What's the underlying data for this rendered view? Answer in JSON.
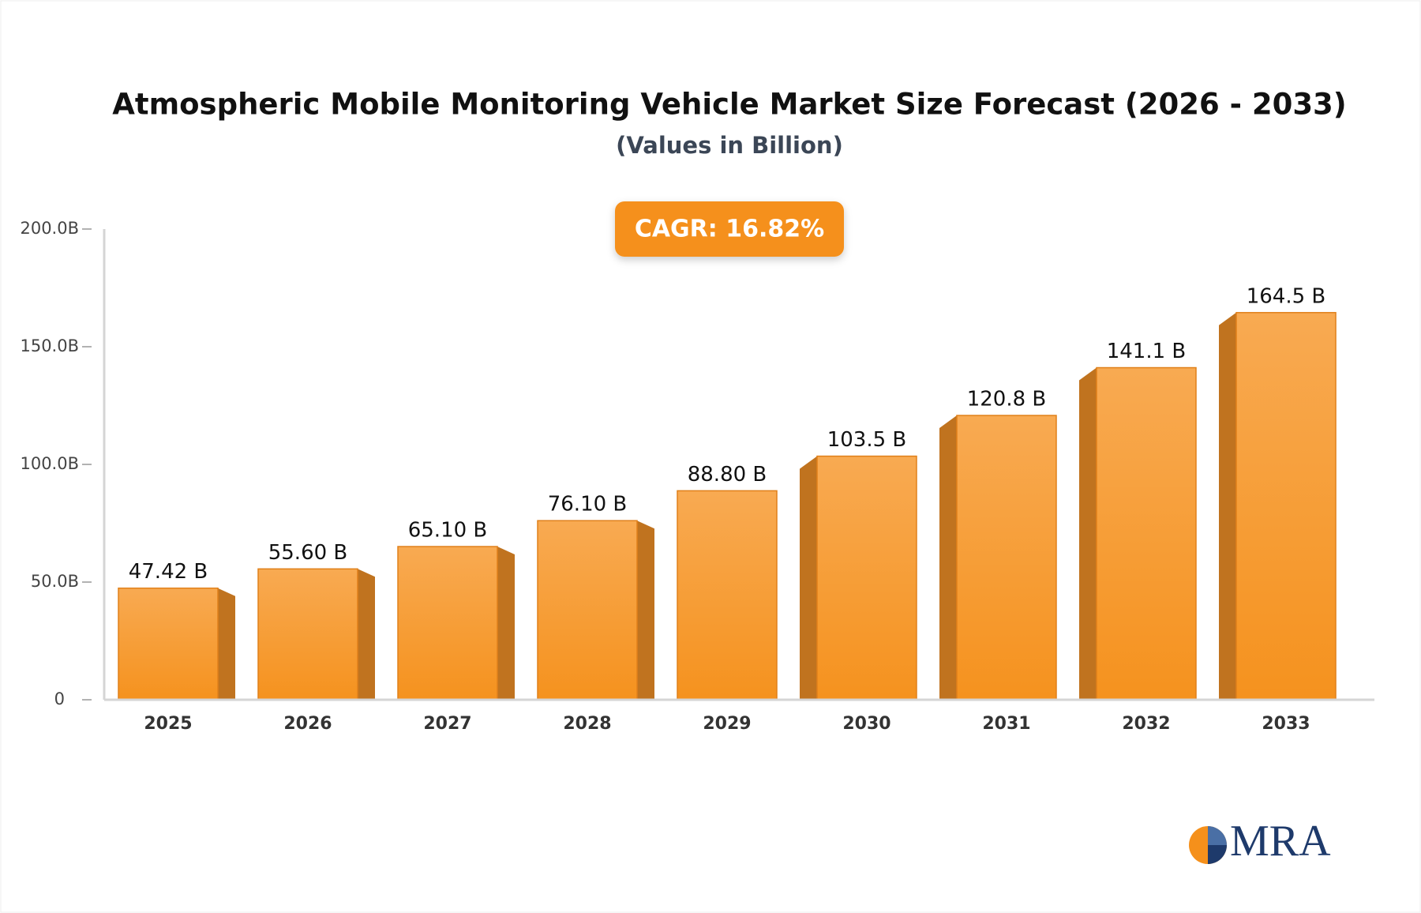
{
  "chart_data": {
    "type": "bar",
    "title": "Atmospheric Mobile Monitoring Vehicle Market Size Forecast (2026 - 2033)",
    "subtitle": "(Values in Billion)",
    "annotation": "CAGR: 16.82%",
    "categories": [
      "2025",
      "2026",
      "2027",
      "2028",
      "2029",
      "2030",
      "2031",
      "2032",
      "2033"
    ],
    "values": [
      47.42,
      55.6,
      65.1,
      76.1,
      88.8,
      103.5,
      120.8,
      141.1,
      164.5
    ],
    "value_labels": [
      "47.42 B",
      "55.60 B",
      "65.10 B",
      "76.10 B",
      "88.80 B",
      "103.5 B",
      "120.8 B",
      "141.1 B",
      "164.5 B"
    ],
    "color": "#f5961f",
    "ylim": [
      0,
      200
    ],
    "yticks": [
      0,
      {
        "value": 50,
        "label": "50.0B"
      },
      {
        "value": 100,
        "label": "100.0B"
      },
      {
        "value": 150,
        "label": "150.0B"
      },
      {
        "value": 200,
        "label": "200.0B"
      }
    ],
    "grid": false
  },
  "logo": "MRA"
}
